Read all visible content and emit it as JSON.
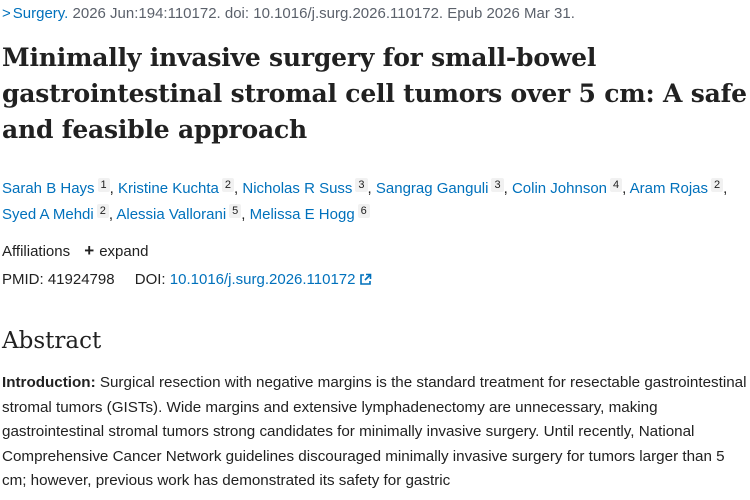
{
  "citation": {
    "journal": "Surgery.",
    "details": " 2026 Jun:194:110172. doi: 10.1016/j.surg.2026.110172. Epub 2026 Mar 31."
  },
  "title": "Minimally invasive surgery for small-bowel gastrointestinal stromal cell tumors over 5 cm: A safe and feasible approach",
  "authors": [
    {
      "name": "Sarah B Hays",
      "aff": "1",
      "sep": ","
    },
    {
      "name": "Kristine Kuchta",
      "aff": "2",
      "sep": ","
    },
    {
      "name": "Nicholas R Suss",
      "aff": "3",
      "sep": ","
    },
    {
      "name": "Sangrag Ganguli",
      "aff": "3",
      "sep": ","
    },
    {
      "name": "Colin Johnson",
      "aff": "4",
      "sep": ","
    },
    {
      "name": "Aram Rojas",
      "aff": "2",
      "sep": ","
    },
    {
      "name": "Syed A Mehdi",
      "aff": "2",
      "sep": ","
    },
    {
      "name": "Alessia Vallorani",
      "aff": "5",
      "sep": ","
    },
    {
      "name": "Melissa E Hogg",
      "aff": "6",
      "sep": ""
    }
  ],
  "affiliations": {
    "label": "Affiliations",
    "expand_label": "expand"
  },
  "ids": {
    "pmid_label": "PMID:",
    "pmid": "41924798",
    "doi_label": "DOI:",
    "doi": "10.1016/j.surg.2026.110172"
  },
  "abstract": {
    "heading": "Abstract",
    "intro_label": "Introduction:",
    "intro_text": " Surgical resection with negative margins is the standard treatment for resectable gastrointestinal stromal tumors (GISTs). Wide margins and extensive lymphadenectomy are unnecessary, making gastrointestinal stromal tumors strong candidates for minimally invasive surgery. Until recently, National Comprehensive Cancer Network guidelines discouraged minimally invasive surgery for tumors larger than 5 cm; however, previous work has demonstrated its safety for gastric"
  },
  "colors": {
    "link": "#0071bc",
    "text": "#212121",
    "muted": "#5b616b"
  },
  "icons": {
    "breadcrumb": "chevron-right-icon",
    "expand": "plus-icon",
    "external": "external-link-icon"
  }
}
